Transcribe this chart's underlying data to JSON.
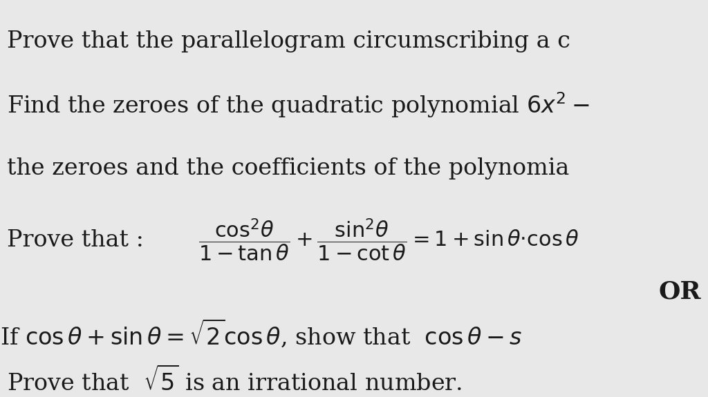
{
  "background_color": "#e8e8e8",
  "line1_text": "Prove that the parallelogram circumscribing a c",
  "line2_text": "Find the zeroes of the quadratic polynomial $6x^2-$",
  "line3_text": "the zeroes and the coefficients of the polynomia",
  "prove_label": "Prove that : ",
  "formula": "$\\dfrac{\\cos^2\\!\\theta}{1-\\tan\\theta} + \\dfrac{\\sin^2\\!\\theta}{1-\\cot\\theta} = 1 + \\sin\\theta{\\cdot}\\cos\\theta$",
  "or_text": "OR",
  "line4": "If $\\cos\\theta + \\sin\\theta = \\sqrt{2}\\cos\\theta$, show that  $\\cos\\theta - s$",
  "line5": "Prove that  $\\sqrt{5}$ is an irrational number.",
  "text_color": "#1a1a1a",
  "fontsize": 24,
  "formula_fontsize": 22,
  "or_fontsize": 26
}
